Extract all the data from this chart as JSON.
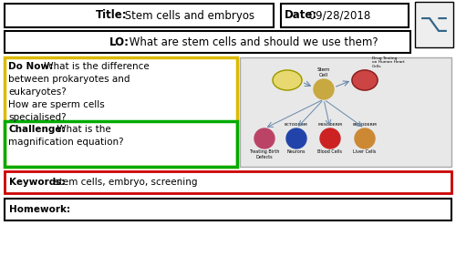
{
  "bg_color": "#ffffff",
  "title_bold": "Title:",
  "title_normal": " Stem cells and embryos",
  "date_bold": "Date:",
  "date_normal": " 09/28/2018",
  "lo_bold": "LO:",
  "lo_normal": " What are stem cells and should we use them?",
  "donow_bold": "Do Now:",
  "donow_line1": " What is the difference",
  "donow_line2": "between prokaryotes and",
  "donow_line3": "eukaryotes?",
  "donow_line4": "How are sperm cells",
  "donow_line5": "specialised?",
  "challenge_bold": "Challenge:",
  "challenge_line1": " What is the",
  "challenge_line2": "magnification equation?",
  "keywords_bold": "Keywords:",
  "keywords_normal": " stem cells, embryo, screening",
  "homework_bold": "Homework:",
  "title_box_color": "#000000",
  "date_box_color": "#000000",
  "lo_box_color": "#000000",
  "donow_box_color": "#ddbb00",
  "challenge_box_color": "#00aa00",
  "keywords_box_color": "#cc0000",
  "homework_box_color": "#000000",
  "diagram_bg": "#f0f0f0"
}
